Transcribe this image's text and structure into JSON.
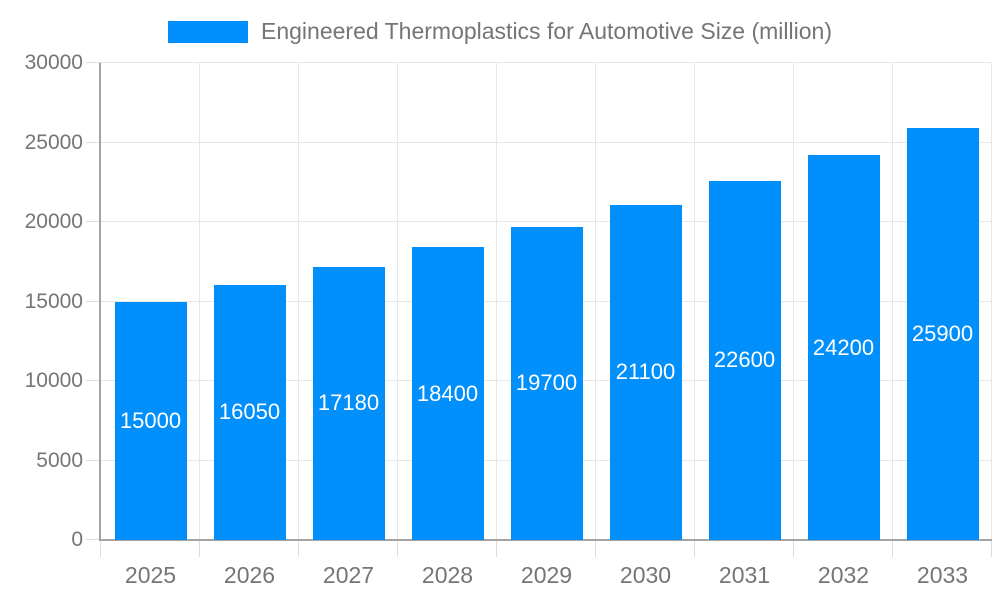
{
  "chart_data": {
    "type": "bar",
    "title": "Engineered Thermoplastics for Automotive Size (million)",
    "categories": [
      "2025",
      "2026",
      "2027",
      "2028",
      "2029",
      "2030",
      "2031",
      "2032",
      "2033"
    ],
    "values": [
      15000,
      16050,
      17180,
      18400,
      19700,
      21100,
      22600,
      24200,
      25900
    ],
    "bar_value_labels": [
      "15000",
      "16050",
      "17180",
      "18400",
      "19700",
      "21100",
      "22600",
      "24200",
      "25900"
    ],
    "xlabel": "",
    "ylabel": "",
    "ylim": [
      0,
      30000
    ],
    "y_ticks": [
      0,
      5000,
      10000,
      15000,
      20000,
      25000,
      30000
    ],
    "grid": true,
    "legend_position": "top"
  },
  "colors": {
    "bar": "#008FFB",
    "grid": "#e7e7e7",
    "tick": "#dcdcdc",
    "axis": "#a3a3a3",
    "text": "#757575",
    "bar_label": "#ffffff",
    "background": "#ffffff"
  }
}
